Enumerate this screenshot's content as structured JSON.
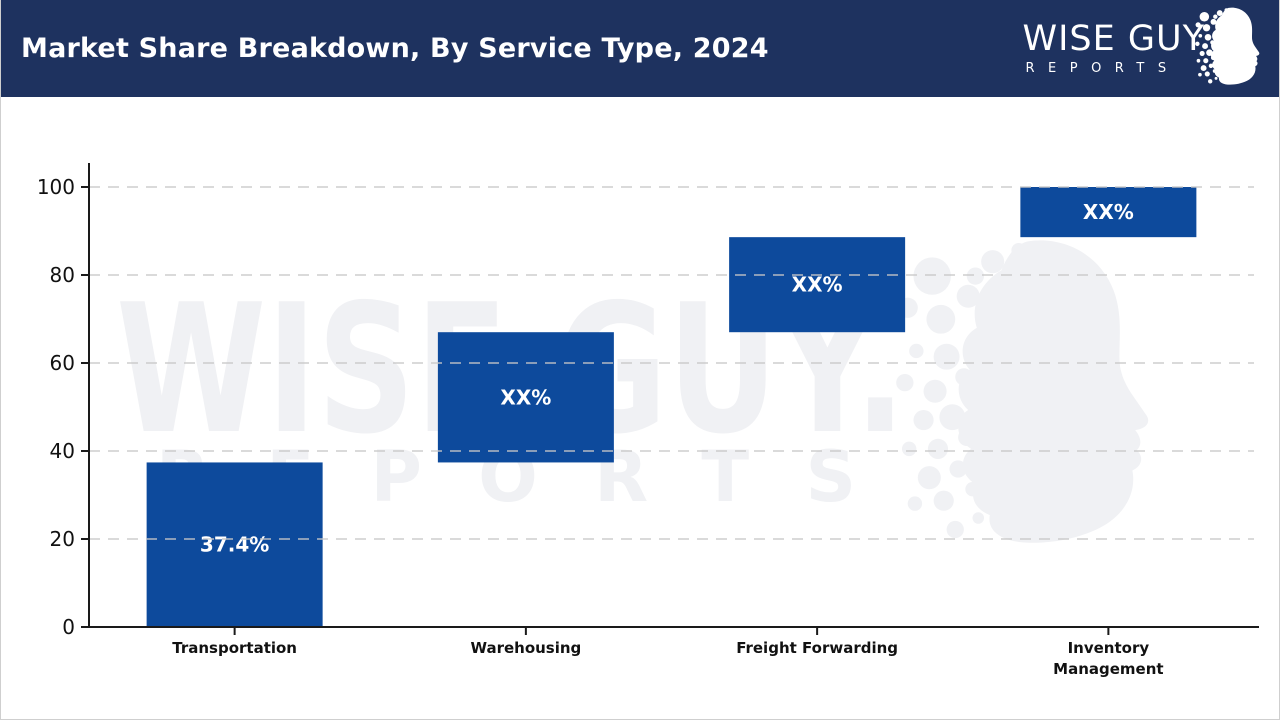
{
  "header": {
    "title": "Market Share Breakdown, By Service Type, 2024",
    "bg_color": "#1e325f",
    "logo": {
      "line1": "WISE GUY",
      "line2": "REPORTS",
      "head_icon": "head-profile-dots-icon",
      "color": "#ffffff"
    }
  },
  "watermark": {
    "line1": "WISE GUY.",
    "line2": "REPORTS",
    "head_icon": "head-profile-dots-icon",
    "color": "#f0f1f4"
  },
  "chart_data": {
    "type": "bar",
    "subtype": "waterfall",
    "title": "Market Share Breakdown, By Service Type, 2024",
    "xlabel": "",
    "ylabel": "",
    "categories": [
      "Transportation",
      "Warehousing",
      "Freight Forwarding",
      "Inventory Management"
    ],
    "series": [
      {
        "name": "Market Share (%)",
        "segments": [
          {
            "category": "Transportation",
            "start": 0,
            "end": 37.4,
            "label": "37.4%"
          },
          {
            "category": "Warehousing",
            "start": 37.4,
            "end": 67.0,
            "label": "XX%"
          },
          {
            "category": "Freight Forwarding",
            "start": 67.0,
            "end": 88.6,
            "label": "XX%"
          },
          {
            "category": "Inventory Management",
            "start": 88.6,
            "end": 100,
            "label": "XX%"
          }
        ]
      }
    ],
    "ylim": [
      0,
      100
    ],
    "yticks": [
      0,
      20,
      40,
      60,
      80,
      100
    ],
    "grid": "horizontal-dashed",
    "grid_color": "#c8c8c8",
    "legend": "none",
    "bar_color": "#0d4a9c",
    "bar_label_color": "#ffffff",
    "axis_color": "#1a1a1a",
    "tick_label_color": "#111111"
  }
}
